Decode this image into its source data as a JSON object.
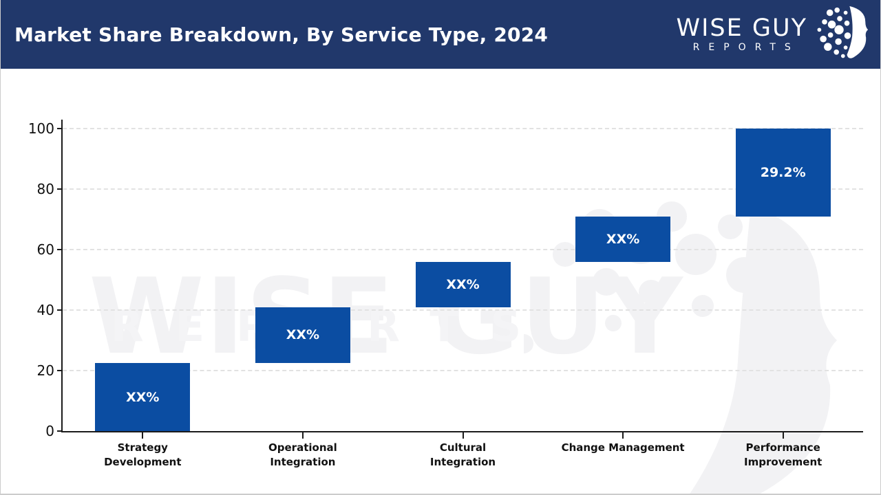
{
  "header": {
    "title": "Market Share Breakdown, By Service Type, 2024",
    "logo": {
      "line1": "WISE GUY",
      "line2": "REPORTS"
    }
  },
  "watermark": {
    "line1": "WISE GUY",
    "line2": "REPORTS"
  },
  "chart_data": {
    "type": "bar",
    "subtype": "waterfall",
    "title": "Market Share Breakdown, By Service Type, 2024",
    "categories": [
      "Strategy\nDevelopment",
      "Operational\nIntegration",
      "Cultural\nIntegration",
      "Change Management",
      "Performance\nImprovement"
    ],
    "segments": [
      {
        "category": "Strategy Development",
        "start": 0,
        "end": 22.5,
        "label": "XX%"
      },
      {
        "category": "Operational Integration",
        "start": 22.5,
        "end": 41,
        "label": "XX%"
      },
      {
        "category": "Cultural Integration",
        "start": 41,
        "end": 56,
        "label": "XX%"
      },
      {
        "category": "Change Management",
        "start": 56,
        "end": 70.8,
        "label": "XX%"
      },
      {
        "category": "Performance Improvement",
        "start": 70.8,
        "end": 100,
        "label": "29.2%"
      }
    ],
    "yticks": [
      0,
      20,
      40,
      60,
      80,
      100
    ],
    "ylim": [
      0,
      103
    ],
    "grid": "dashed-horizontal",
    "legend": "none",
    "bar_color": "#0b4da2",
    "bar_label_color": "#ffffff",
    "header_color": "#21386b",
    "watermark_color": "#f2f2f4"
  }
}
